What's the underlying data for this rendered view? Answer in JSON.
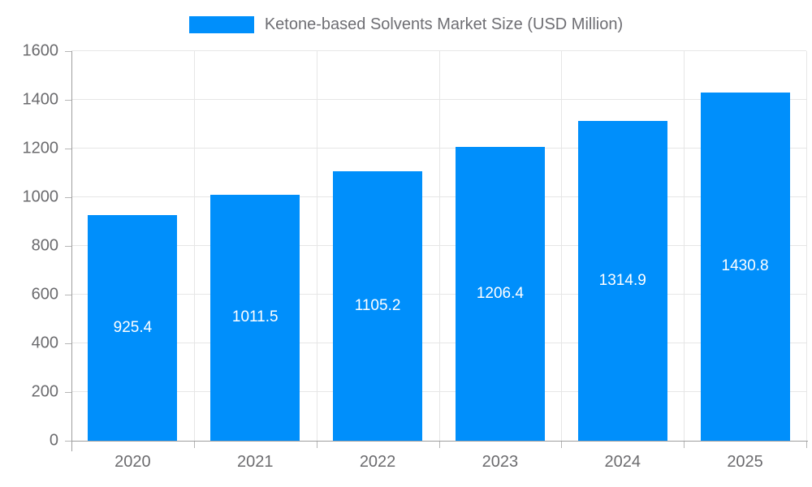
{
  "legend": {
    "label": "Ketone-based Solvents Market Size (USD Million)",
    "swatch_color": "#008FFB"
  },
  "chart_data": {
    "type": "bar",
    "title": "Ketone-based Solvents Market Size (USD Million)",
    "categories": [
      "2020",
      "2021",
      "2022",
      "2023",
      "2024",
      "2025"
    ],
    "values": [
      925.4,
      1011.5,
      1105.2,
      1206.4,
      1314.9,
      1430.8
    ],
    "value_labels": [
      "925.4",
      "1011.5",
      "1105.2",
      "1206.4",
      "1314.9",
      "1430.8"
    ],
    "xlabel": "",
    "ylabel": "",
    "ylim": [
      0,
      1600
    ],
    "yticks": [
      0,
      200,
      400,
      600,
      800,
      1000,
      1200,
      1400,
      1600
    ],
    "grid": true,
    "legend_position": "top",
    "colors": {
      "bar": "#008FFB",
      "bar_label": "#ffffff",
      "axis_label": "#6b6b6e",
      "gridline": "#e6e6e6",
      "axis_line": "#9e9e9e"
    }
  }
}
